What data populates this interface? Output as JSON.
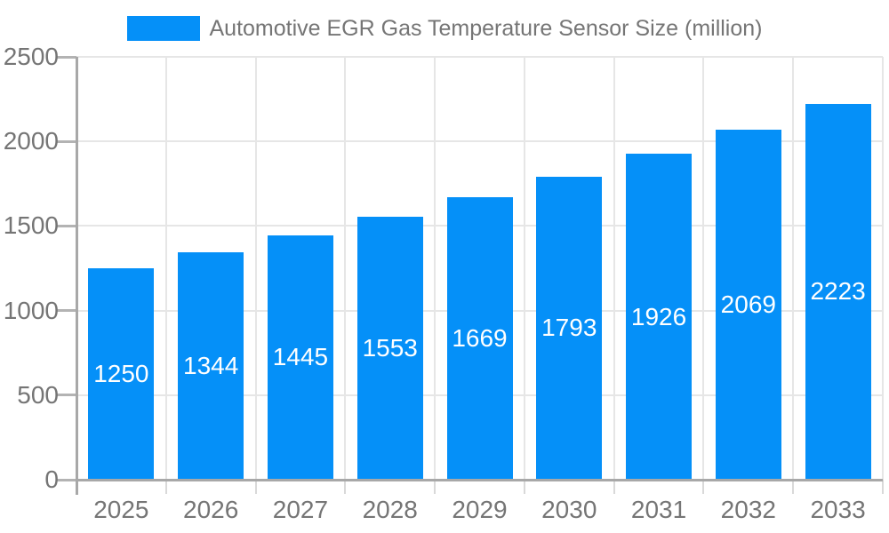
{
  "legend": {
    "label": "Automotive EGR Gas Temperature Sensor Size (million)"
  },
  "chart_data": {
    "type": "bar",
    "title": "Automotive EGR Gas Temperature Sensor Size (million)",
    "categories": [
      "2025",
      "2026",
      "2027",
      "2028",
      "2029",
      "2030",
      "2031",
      "2032",
      "2033"
    ],
    "values": [
      1250,
      1344,
      1445,
      1553,
      1669,
      1793,
      1926,
      2069,
      2223
    ],
    "xlabel": "",
    "ylabel": "",
    "ylim": [
      0,
      2500
    ],
    "yticks": [
      0,
      500,
      1000,
      1500,
      2000,
      2500
    ],
    "grid": true,
    "legend_position": "top",
    "value_labels": "centered-inside-bars",
    "colors": {
      "bar": "#0590f8",
      "value_label": "#ffffff",
      "axis": "#a8a8a8",
      "grid": "#e6e6e6",
      "ytick": "#b3b3b3",
      "xtick": "#d9d9d9",
      "label": "#757575",
      "background": "#ffffff"
    }
  }
}
